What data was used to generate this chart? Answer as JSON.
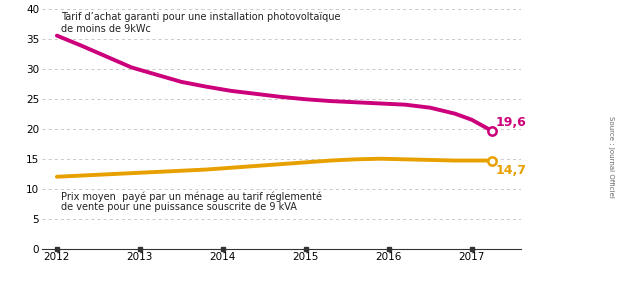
{
  "pink_x": [
    2012.0,
    2012.3,
    2012.6,
    2012.9,
    2013.2,
    2013.5,
    2013.8,
    2014.1,
    2014.4,
    2014.7,
    2015.0,
    2015.3,
    2015.6,
    2015.9,
    2016.2,
    2016.5,
    2016.8,
    2017.0,
    2017.25
  ],
  "pink_y": [
    35.5,
    33.8,
    32.0,
    30.2,
    29.0,
    27.8,
    27.0,
    26.3,
    25.8,
    25.3,
    24.9,
    24.6,
    24.4,
    24.2,
    24.0,
    23.5,
    22.5,
    21.5,
    19.6
  ],
  "orange_x": [
    2012.0,
    2012.3,
    2012.6,
    2012.9,
    2013.2,
    2013.5,
    2013.8,
    2014.1,
    2014.4,
    2014.7,
    2015.0,
    2015.3,
    2015.6,
    2015.9,
    2016.2,
    2016.5,
    2016.8,
    2017.0,
    2017.25
  ],
  "orange_y": [
    12.0,
    12.2,
    12.4,
    12.6,
    12.8,
    13.0,
    13.2,
    13.5,
    13.8,
    14.1,
    14.4,
    14.7,
    14.9,
    15.0,
    14.9,
    14.8,
    14.7,
    14.7,
    14.7
  ],
  "pink_color": "#CC007A",
  "orange_color": "#E8A000",
  "pink_label_value": "19,6",
  "orange_label_value": "14,7",
  "pink_annotation_line1": "Tarif d’achat garanti pour une installation photovoltaïque",
  "pink_annotation_line2": "de moins de 9kWc",
  "orange_annotation_line1": "Prix moyen  payé par un ménage au tarif réglementé",
  "orange_annotation_line2": "de vente pour une puissance souscrite de 9 kVA",
  "source_text": "Source : Journal Officiel",
  "xlim": [
    2011.82,
    2017.6
  ],
  "ylim": [
    0,
    40
  ],
  "yticks": [
    0,
    5,
    10,
    15,
    20,
    25,
    30,
    35,
    40
  ],
  "xticks": [
    2012,
    2013,
    2014,
    2015,
    2016,
    2017
  ],
  "grid_color": "#BBBBBB",
  "background_color": "#FFFFFF",
  "linewidth": 2.8,
  "font_size_annotation": 7.0,
  "font_size_ticks": 7.5,
  "font_size_value": 9.0
}
